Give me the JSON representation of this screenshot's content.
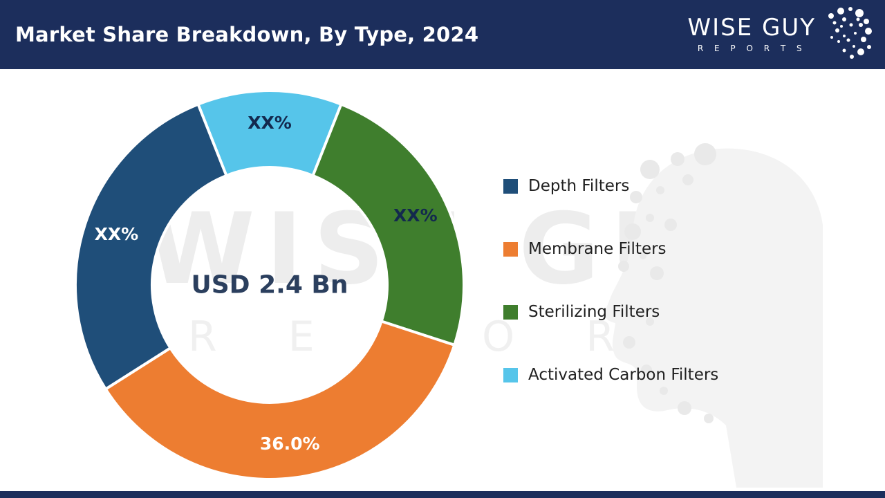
{
  "header": {
    "title": "Market Share Breakdown, By Type, 2024",
    "logo": {
      "name": "WISE GUY",
      "tagline": "R E P O R T S"
    }
  },
  "chart_data": {
    "type": "pie",
    "subtype": "donut",
    "title": "Market Share Breakdown, By Type, 2024",
    "center_label": "USD 2.4 Bn",
    "start_angle": 338.4,
    "segments": [
      {
        "label": "Activated Carbon Filters",
        "display": "XX%",
        "value": 12,
        "color": "#56c5ea",
        "label_color": "#13294e"
      },
      {
        "label": "Sterilizing Filters",
        "display": "XX%",
        "value": 24,
        "color": "#3f7e2d",
        "label_color": "#13294e"
      },
      {
        "label": "Membrane Filters",
        "display": "36.0%",
        "value": 36,
        "color": "#ed7d31",
        "label_color": "#ffffff"
      },
      {
        "label": "Depth Filters",
        "display": "XX%",
        "value": 28,
        "color": "#1f4e79",
        "label_color": "#ffffff"
      }
    ]
  },
  "legend": {
    "items": [
      {
        "label": "Depth Filters",
        "color": "#1f4e79"
      },
      {
        "label": "Membrane Filters",
        "color": "#ed7d31"
      },
      {
        "label": "Sterilizing Filters",
        "color": "#3f7e2d"
      },
      {
        "label": "Activated Carbon Filters",
        "color": "#56c5ea"
      }
    ]
  },
  "watermark": {
    "line1": "WISE GUY",
    "line2": "R E P O R T S"
  },
  "theme": {
    "header_bg": "#1c2e5c",
    "footer_bg": "#1c2e5c",
    "background": "#ffffff"
  }
}
